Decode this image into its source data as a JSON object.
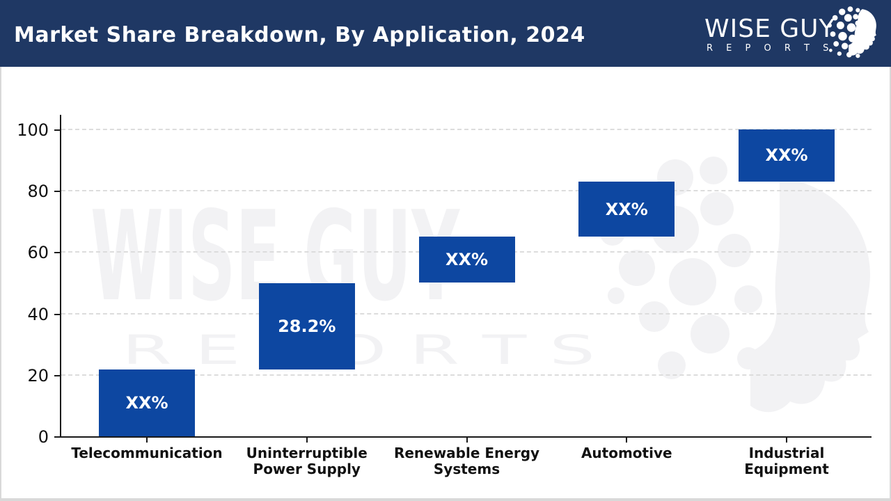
{
  "header": {
    "title": "Market Share Breakdown, By Application, 2024",
    "logo": {
      "wordmark": "WISE GUY",
      "subtext": "R E P O R T S"
    }
  },
  "watermark": {
    "wordmark": "WISE GUY",
    "subtext": "R E P O R T S"
  },
  "chart_data": {
    "type": "bar",
    "subtype": "floating-breakdown",
    "title": "Market Share Breakdown, By Application, 2024",
    "xlabel": "",
    "ylabel": "",
    "ylim": [
      0,
      100
    ],
    "y_ticks": [
      0,
      20,
      40,
      60,
      80,
      100
    ],
    "grid": "horizontal-dashed",
    "legend": "none",
    "bar_color": "#0d47a1",
    "bar_label_color": "#ffffff",
    "categories": [
      {
        "lines": [
          "Telecommunication"
        ]
      },
      {
        "lines": [
          "Uninterruptible",
          "Power Supply"
        ]
      },
      {
        "lines": [
          "Renewable Energy",
          "Systems"
        ]
      },
      {
        "lines": [
          "Automotive"
        ]
      },
      {
        "lines": [
          "Industrial",
          "Equipment"
        ]
      }
    ],
    "bars": [
      {
        "category": "Telecommunication",
        "start": 0,
        "end": 21.8,
        "height": 21.8,
        "label": "XX%"
      },
      {
        "category": "Uninterruptible Power Supply",
        "start": 21.8,
        "end": 50,
        "height": 28.2,
        "label": "28.2%"
      },
      {
        "category": "Renewable Energy Systems",
        "start": 50,
        "end": 65,
        "height": 15,
        "label": "XX%"
      },
      {
        "category": "Automotive",
        "start": 65,
        "end": 83,
        "height": 18,
        "label": "XX%"
      },
      {
        "category": "Industrial Equipment",
        "start": 83,
        "end": 100,
        "height": 17,
        "label": "XX%"
      }
    ]
  },
  "colors": {
    "header_bg": "#1f3864",
    "bar": "#0d47a1",
    "gridline": "#dcdcdc",
    "axis": "#1a1a1a",
    "watermark": "#f2f2f4",
    "frame_border": "#d9d9d9"
  }
}
